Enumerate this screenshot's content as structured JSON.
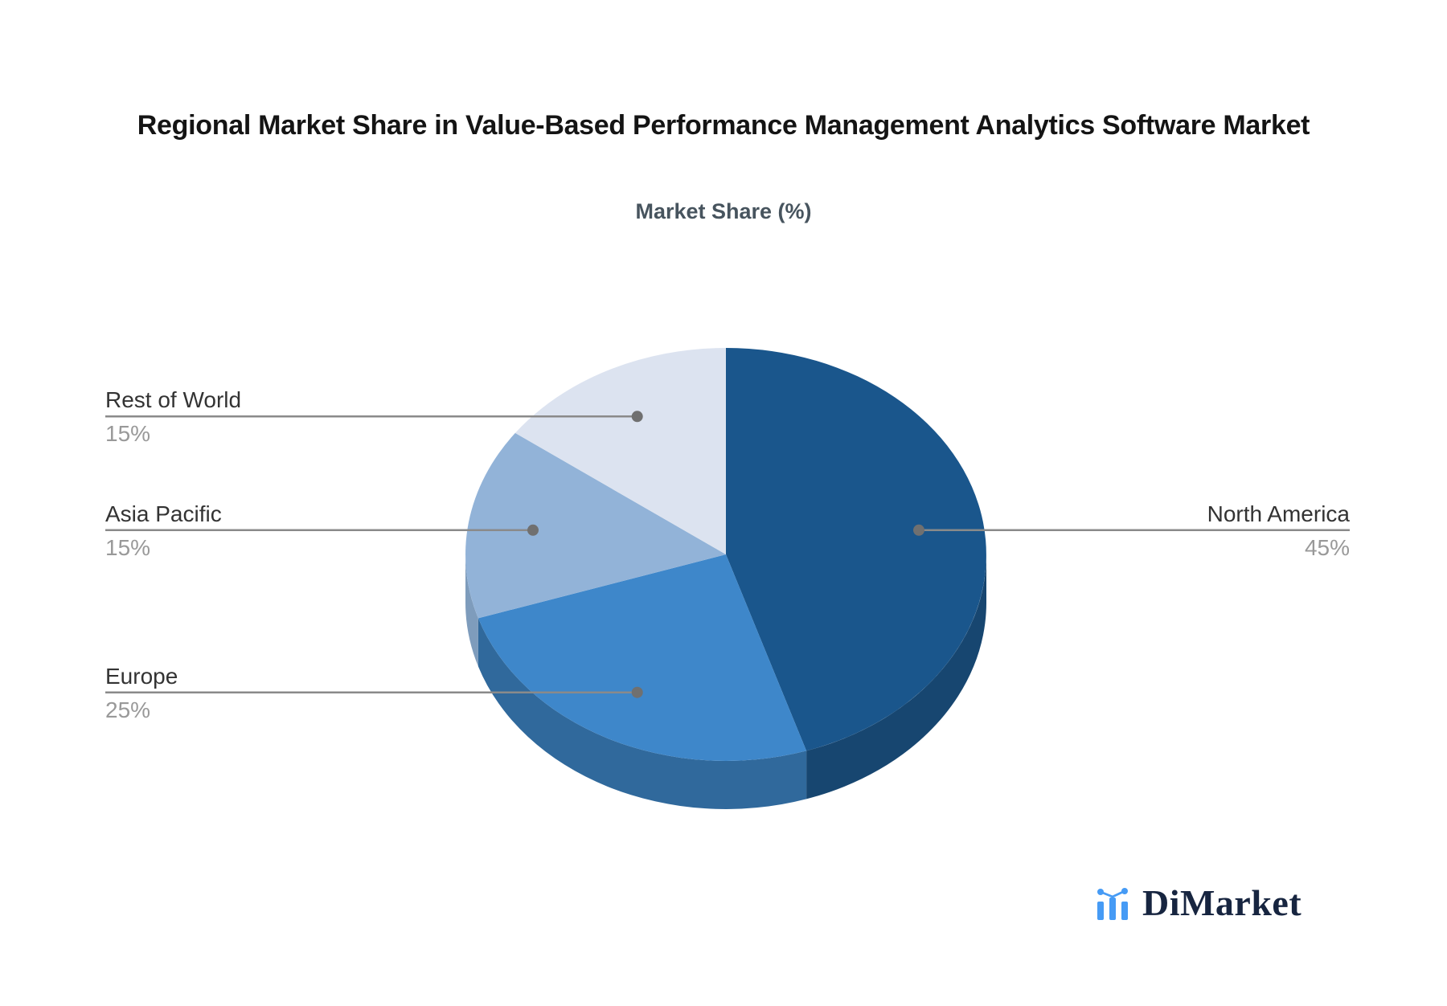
{
  "title": "Regional Market Share in Value-Based Performance Management Analytics Software Market",
  "subtitle": "Market Share (%)",
  "brand": {
    "name": "DiMarket",
    "icon": "bar-chart-trend-icon",
    "icon_color": "#469BF5",
    "text_color": "#172540"
  },
  "chart_data": {
    "type": "pie",
    "unit": "%",
    "title": "Regional Market Share in Value-Based Performance Management Analytics Software Market",
    "subtitle": "Market Share (%)",
    "effect": "3d",
    "start_angle": "top",
    "direction": "clockwise",
    "legend_position": "none",
    "labels": "leader-lines, name above line, percent below line",
    "slices": [
      {
        "label": "North America",
        "value": 45,
        "color": "#1A568C",
        "side_color": "#174670"
      },
      {
        "label": "Europe",
        "value": 25,
        "color": "#3E87CA",
        "side_color": "#30699C"
      },
      {
        "label": "Asia Pacific",
        "value": 15,
        "color": "#92B3D8",
        "side_color": "#7E9CBC"
      },
      {
        "label": "Rest of World",
        "value": 15,
        "color": "#DCE3F0",
        "side_color": "#C2CBDD"
      }
    ],
    "label_name_color": "#333333",
    "label_pct_color": "#999999",
    "leader_line_color": "#8A8A8A",
    "leader_dot_color": "#707070"
  }
}
